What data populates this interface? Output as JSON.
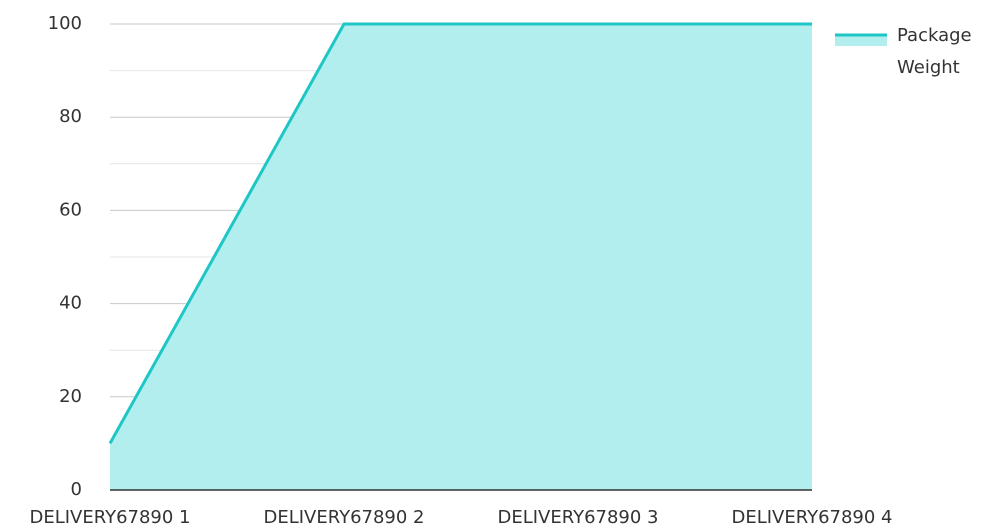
{
  "chart_data": {
    "type": "area",
    "categories": [
      "DELIVERY67890 1",
      "DELIVERY67890 2",
      "DELIVERY67890 3",
      "DELIVERY67890 4"
    ],
    "series": [
      {
        "name": "Package Weight",
        "color": "#1ec6c6",
        "fill": "#b2eeee",
        "values": [
          10,
          100,
          100,
          100
        ]
      }
    ],
    "ylim": [
      0,
      100
    ],
    "yticks": [
      0,
      20,
      40,
      60,
      80,
      100
    ],
    "minor_yticks": [
      10,
      30,
      50,
      70,
      90
    ],
    "grid": true,
    "legend": "right"
  }
}
